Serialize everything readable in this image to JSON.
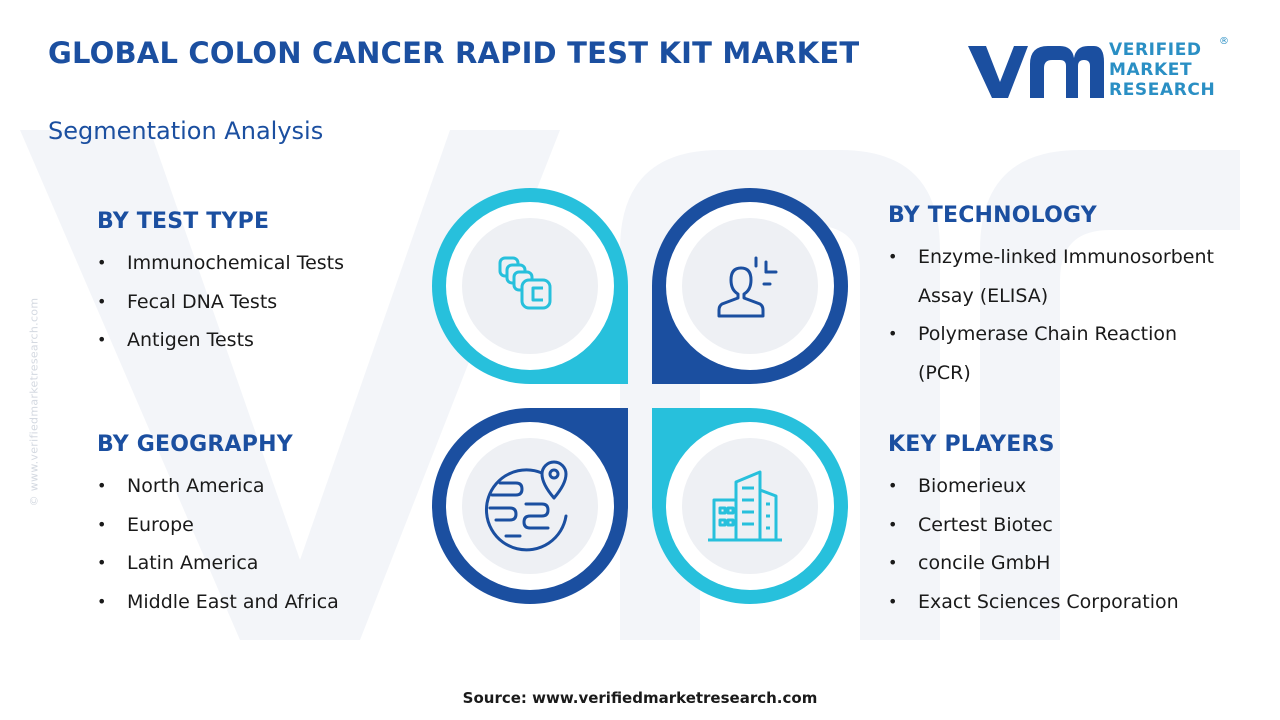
{
  "header": {
    "title": "GLOBAL COLON CANCER RAPID TEST KIT MARKET",
    "subtitle": "Segmentation Analysis"
  },
  "logo": {
    "line1": "VERIFIED",
    "line2": "MARKET",
    "line3": "RESEARCH",
    "registered": "®"
  },
  "side_watermark": "© www.verifiedmarketresearch.com",
  "segments": {
    "test_type": {
      "heading": "BY TEST TYPE",
      "items": [
        "Immunochemical Tests",
        "Fecal DNA Tests",
        "Antigen Tests"
      ]
    },
    "technology": {
      "heading": "BY TECHNOLOGY",
      "items": [
        "Enzyme-linked Immunosorbent Assay (ELISA)",
        "Polymerase Chain Reaction (PCR)"
      ]
    },
    "geography": {
      "heading": "BY GEOGRAPHY",
      "items": [
        "North America",
        "Europe",
        "Latin America",
        "Middle East and Africa"
      ]
    },
    "key_players": {
      "heading": "KEY PLAYERS",
      "items": [
        "Biomerieux",
        "Certest Biotec",
        "concile GmbH",
        "Exact Sciences Corporation"
      ]
    }
  },
  "icons": [
    "test-cards-icon",
    "person-scan-icon",
    "globe-location-icon",
    "city-buildings-icon"
  ],
  "colors": {
    "navy": "#1b4fa0",
    "cyan": "#27c0dc",
    "ring_gray": "#eef0f4",
    "logo_blue": "#2a8fc4"
  },
  "footer": {
    "source": "Source: www.verifiedmarketresearch.com"
  }
}
